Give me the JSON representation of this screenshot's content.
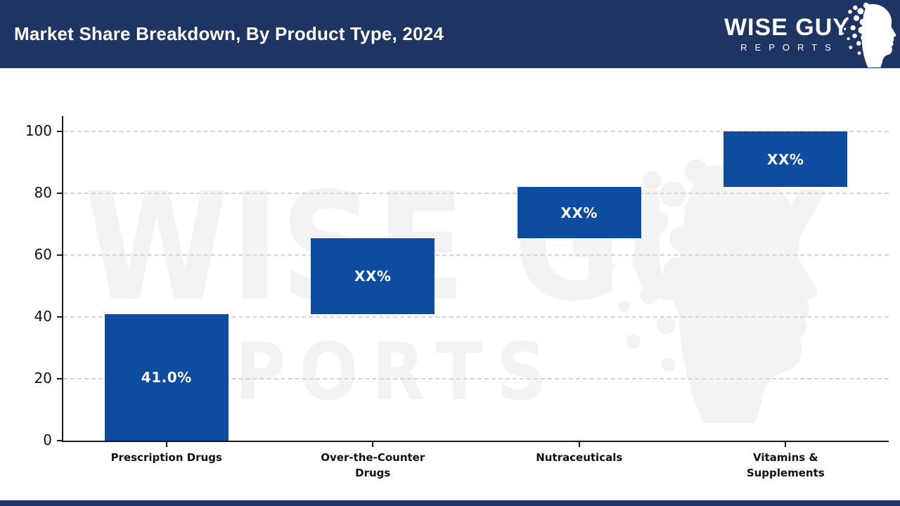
{
  "header": {
    "title": "Market Share Breakdown, By Product Type, 2024",
    "logo": {
      "line1": "WISE GUY",
      "line2": "REPORTS"
    }
  },
  "watermark": {
    "line1": "WISE GUY",
    "line2": "REPORTS"
  },
  "colors": {
    "header_bg": "#1e3563",
    "footer_bg": "#1e3563",
    "title_text": "#ffffff",
    "bar_fill": "#0d4c9e",
    "bar_label": "#ffffff",
    "watermark": "#f2f3f5",
    "gridline": "#d6d6d6",
    "axis": "#1a1a1a"
  },
  "chart_data": {
    "type": "bar",
    "subtype": "floating-waterfall",
    "title": "Market Share Breakdown, By Product Type, 2024",
    "categories": [
      "Prescription Drugs",
      "Over-the-Counter Drugs",
      "Nutraceuticals",
      "Vitamins & Supplements"
    ],
    "category_lines": [
      [
        "Prescription Drugs"
      ],
      [
        "Over-the-Counter",
        "Drugs"
      ],
      [
        "Nutraceuticals"
      ],
      [
        "Vitamins &",
        "Supplements"
      ]
    ],
    "segments": [
      {
        "start": 0,
        "end": 41
      },
      {
        "start": 41,
        "end": 65.5
      },
      {
        "start": 65.5,
        "end": 82
      },
      {
        "start": 82,
        "end": 100
      }
    ],
    "bar_labels": [
      "41.0%",
      "XX%",
      "XX%",
      "XX%"
    ],
    "values_pct": [
      41.0,
      null,
      null,
      null
    ],
    "xlabel": "",
    "ylabel": "",
    "yticks": [
      0,
      20,
      40,
      60,
      80,
      100
    ],
    "ylim": [
      0,
      105
    ],
    "grid": "horizontal-dashed",
    "legend": "none",
    "bar_width_fraction": 0.6
  }
}
